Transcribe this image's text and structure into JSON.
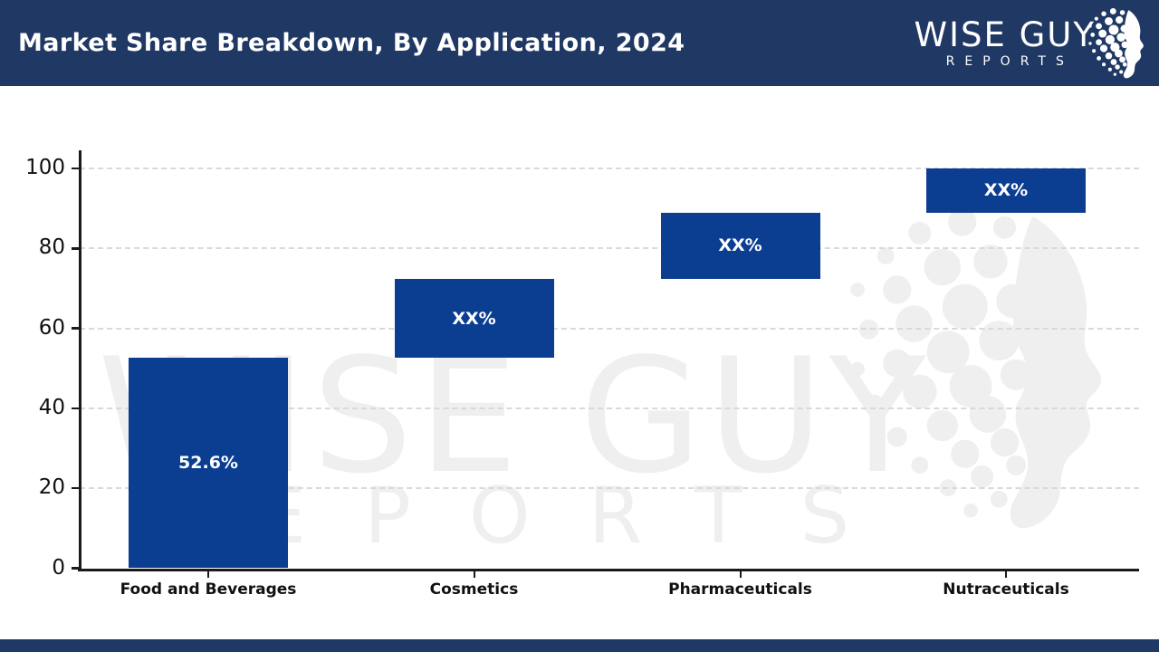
{
  "header": {
    "title": "Market Share Breakdown, By Application, 2024"
  },
  "brand": {
    "line1": "WISE GUY",
    "line2": "REPORTS"
  },
  "watermark": {
    "line1": "WISE GUY",
    "line2": "REPORTS"
  },
  "chart_data": {
    "type": "bar",
    "variant": "waterfall",
    "title": "Market Share Breakdown, By Application, 2024",
    "categories": [
      "Food and Beverages",
      "Cosmetics",
      "Pharmaceuticals",
      "Nutraceuticals"
    ],
    "segments": [
      {
        "category": "Food and Beverages",
        "label": "52.6%",
        "start": 0,
        "end": 52.6
      },
      {
        "category": "Cosmetics",
        "label": "XX%",
        "start": 52.6,
        "end": 72.4
      },
      {
        "category": "Pharmaceuticals",
        "label": "XX%",
        "start": 72.4,
        "end": 89
      },
      {
        "category": "Nutraceuticals",
        "label": "XX%",
        "start": 89,
        "end": 100
      }
    ],
    "yticks": [
      0,
      20,
      40,
      60,
      80,
      100
    ],
    "ylim": [
      0,
      104
    ],
    "grid": {
      "axis": "y",
      "style": "dashed"
    },
    "legend": "none"
  },
  "colors": {
    "header_bg": "#1f3864",
    "footer_bg": "#1f3864",
    "bar": "#0b3d91",
    "grid": "#d9d9d9",
    "axis": "#1a1a1a",
    "value_label": "#ffffff",
    "watermark": "#efefef"
  }
}
